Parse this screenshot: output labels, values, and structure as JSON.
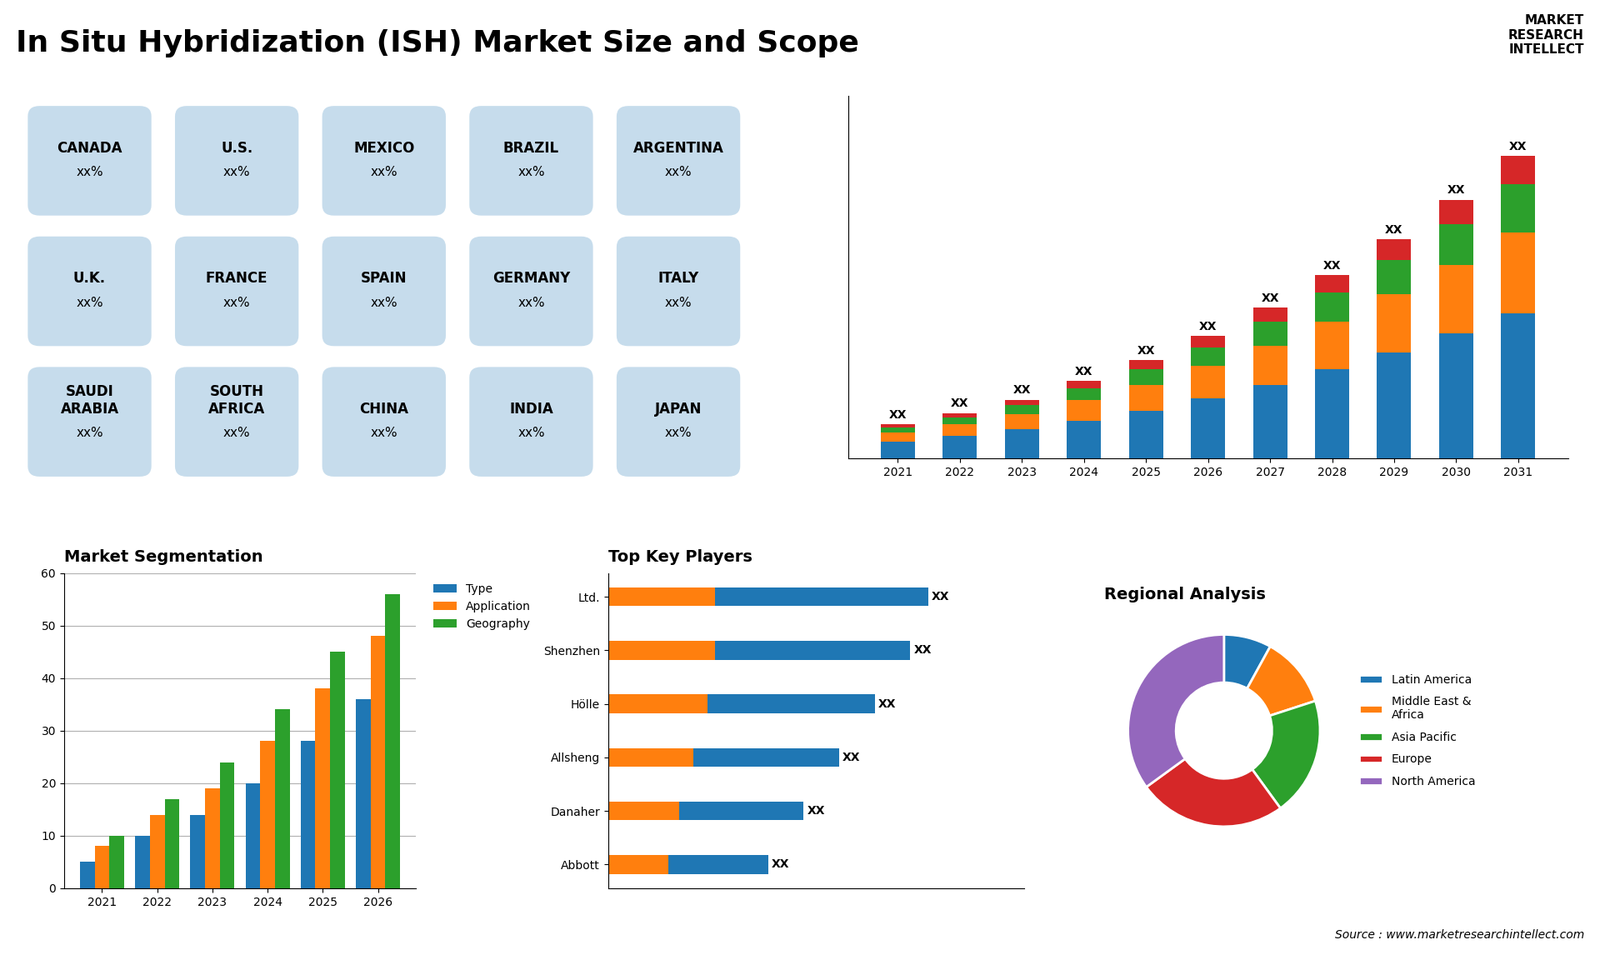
{
  "title": "In Situ Hybridization (ISH) Market Size and Scope",
  "annotations": [
    "Source : www.marketresearchintellect.com",
    "MARKET\nRESEARCH\nINTELLECT"
  ],
  "chart_data": [
    {
      "type": "map",
      "categories": [
        "CANADA",
        "U.S.",
        "MEXICO",
        "BRAZIL",
        "ARGENTINA",
        "U.K.",
        "FRANCE",
        "SPAIN",
        "GERMANY",
        "ITALY",
        "SAUDI\nARABIA",
        "SOUTH\nAFRICA",
        "CHINA",
        "INDIA",
        "JAPAN"
      ],
      "value_labels": [
        "xx%",
        "xx%",
        "xx%",
        "xx%",
        "xx%",
        "xx%",
        "xx%",
        "xx%",
        "xx%",
        "xx%",
        "xx%",
        "xx%",
        "xx%",
        "xx%",
        "xx%"
      ]
    },
    {
      "type": "bar",
      "stacked": true,
      "tick_labels": "x",
      "categories": [
        "2021",
        "2022",
        "2023",
        "2024",
        "2025",
        "2026",
        "2027",
        "2028",
        "2029",
        "2030",
        "2031"
      ],
      "ylim": [
        0,
        21.204
      ],
      "series": [
        {
          "values": [
            1,
            1.3,
            1.7,
            2.2,
            2.8,
            3.5,
            4.3,
            5.2,
            6.2,
            7.3,
            8.5
          ]
        },
        {
          "values": [
            0.5,
            0.7,
            0.9,
            1.2,
            1.5,
            1.9,
            2.3,
            2.8,
            3.4,
            4.0,
            4.7
          ]
        },
        {
          "values": [
            0.3,
            0.4,
            0.5,
            0.7,
            0.9,
            1.1,
            1.4,
            1.7,
            2.0,
            2.4,
            2.8
          ]
        },
        {
          "values": [
            0.2,
            0.25,
            0.33,
            0.42,
            0.53,
            0.67,
            0.82,
            1.0,
            1.2,
            1.42,
            1.67
          ],
          "value_labels": [
            "XX",
            "XX",
            "XX",
            "XX",
            "XX",
            "XX",
            "XX",
            "XX",
            "XX",
            "XX",
            "XX"
          ]
        }
      ]
    },
    {
      "type": "bar",
      "title": "Market Segmentation",
      "stacked": false,
      "grid": true,
      "legend": "upper left",
      "categories": [
        "2021",
        "2022",
        "2023",
        "2024",
        "2025",
        "2026"
      ],
      "ylim": [
        0,
        60
      ],
      "yticks": [
        0,
        10,
        20,
        30,
        40,
        50,
        60
      ],
      "series": [
        {
          "name": "Type",
          "values": [
            5,
            10,
            14,
            20,
            28,
            36
          ]
        },
        {
          "name": "Application",
          "values": [
            8,
            14,
            19,
            28,
            38,
            48
          ]
        },
        {
          "name": "Geography",
          "values": [
            10,
            17,
            24,
            34,
            45,
            56
          ]
        }
      ]
    },
    {
      "type": "bar",
      "title": "Top Key Players",
      "orientation": "horizontal",
      "stacked": false,
      "tick_labels": "y",
      "categories": [
        "Ltd.",
        "Shenzhen",
        "Hölle",
        "Allsheng",
        "Danaher",
        "Abbott"
      ],
      "xlim": [
        0,
        11.7
      ],
      "series": [
        {
          "values": [
            9,
            8.5,
            7.5,
            6.5,
            5.5,
            4.5
          ],
          "value_labels": [
            "XX",
            "XX",
            "XX",
            "XX",
            "XX",
            "XX"
          ]
        },
        {
          "values": [
            3,
            3,
            2.8,
            2.4,
            2.0,
            1.7
          ]
        }
      ]
    },
    {
      "type": "donut",
      "title": "Regional Analysis",
      "legend": "center left",
      "categories": [
        "Latin America",
        "Middle East &\nAfrica",
        "Asia Pacific",
        "Europe",
        "North America"
      ],
      "values": [
        8,
        12,
        20,
        25,
        35
      ]
    }
  ]
}
